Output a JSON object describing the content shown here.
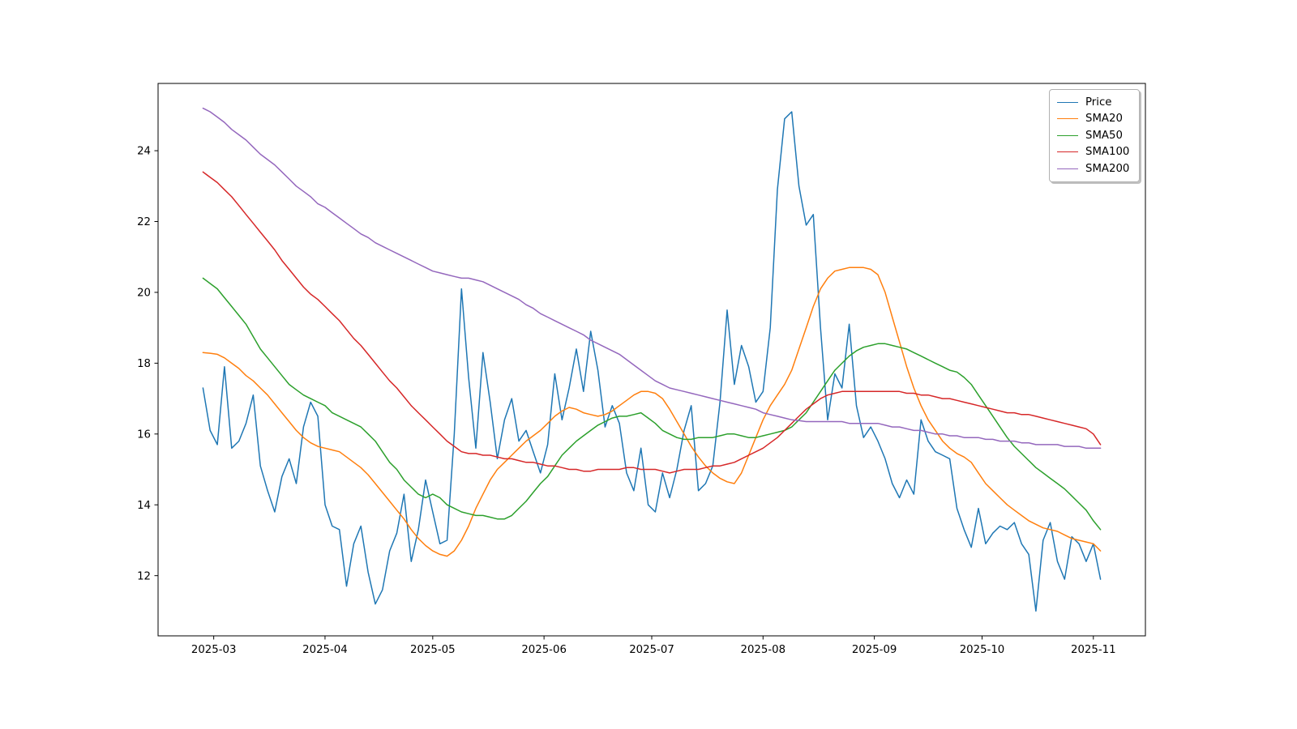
{
  "figure": {
    "background": "#ffffff",
    "plot_background": "#ffffff",
    "spine_color": "#000000",
    "tick_label_color": "#000000"
  },
  "chart_data": {
    "type": "line",
    "title": "",
    "xlabel": "",
    "ylabel": "",
    "grid": false,
    "x_axis": {
      "start_date": "2025-02-26",
      "step_days": 2,
      "ticks": [
        {
          "label": "2025-03",
          "offset": 3
        },
        {
          "label": "2025-04",
          "offset": 34
        },
        {
          "label": "2025-05",
          "offset": 64
        },
        {
          "label": "2025-06",
          "offset": 95
        },
        {
          "label": "2025-07",
          "offset": 125
        },
        {
          "label": "2025-08",
          "offset": 156
        },
        {
          "label": "2025-09",
          "offset": 187
        },
        {
          "label": "2025-10",
          "offset": 217
        },
        {
          "label": "2025-11",
          "offset": 248
        }
      ]
    },
    "y_ticks": [
      12,
      14,
      16,
      18,
      20,
      22,
      24
    ],
    "ylim": [
      10.3,
      25.9
    ],
    "xlim_days": [
      -12.5,
      262.5
    ],
    "legend": {
      "position": "upper right",
      "entries": [
        "Price",
        "SMA20",
        "SMA50",
        "SMA100",
        "SMA200"
      ]
    },
    "series": [
      {
        "name": "Price",
        "color": "#1f77b4",
        "values": [
          17.3,
          16.1,
          15.7,
          17.9,
          15.6,
          15.8,
          16.3,
          17.1,
          15.1,
          14.4,
          13.8,
          14.8,
          15.3,
          14.6,
          16.2,
          16.9,
          16.5,
          14.0,
          13.4,
          13.3,
          11.7,
          12.9,
          13.4,
          12.1,
          11.2,
          11.6,
          12.7,
          13.2,
          14.3,
          12.4,
          13.3,
          14.7,
          13.8,
          12.9,
          13.0,
          16.0,
          20.1,
          17.6,
          15.6,
          18.3,
          16.9,
          15.3,
          16.4,
          17.0,
          15.8,
          16.1,
          15.5,
          14.9,
          15.7,
          17.7,
          16.4,
          17.3,
          18.4,
          17.2,
          18.9,
          17.8,
          16.2,
          16.8,
          16.3,
          14.9,
          14.4,
          15.6,
          14.0,
          13.8,
          14.9,
          14.2,
          15.0,
          16.1,
          16.8,
          14.4,
          14.6,
          15.1,
          16.9,
          19.5,
          17.4,
          18.5,
          17.9,
          16.9,
          17.2,
          19.0,
          22.9,
          24.9,
          25.1,
          23.0,
          21.9,
          22.2,
          19.0,
          16.4,
          17.7,
          17.3,
          19.1,
          16.8,
          15.9,
          16.2,
          15.8,
          15.3,
          14.6,
          14.2,
          14.7,
          14.3,
          16.4,
          15.8,
          15.5,
          15.4,
          15.3,
          13.9,
          13.3,
          12.8,
          13.9,
          12.9,
          13.2,
          13.4,
          13.3,
          13.5,
          12.9,
          12.6,
          11.0,
          13.0,
          13.5,
          12.4,
          11.9,
          13.1,
          12.9,
          12.4,
          12.9,
          11.9
        ]
      },
      {
        "name": "SMA20",
        "color": "#ff7f0e",
        "values": [
          18.3,
          18.28,
          18.25,
          18.15,
          18.0,
          17.85,
          17.65,
          17.5,
          17.3,
          17.1,
          16.85,
          16.6,
          16.35,
          16.1,
          15.9,
          15.75,
          15.65,
          15.6,
          15.55,
          15.5,
          15.35,
          15.2,
          15.05,
          14.85,
          14.6,
          14.35,
          14.1,
          13.85,
          13.6,
          13.3,
          13.05,
          12.85,
          12.7,
          12.6,
          12.55,
          12.7,
          13.0,
          13.4,
          13.9,
          14.3,
          14.7,
          15.0,
          15.2,
          15.4,
          15.6,
          15.8,
          15.95,
          16.1,
          16.3,
          16.5,
          16.65,
          16.75,
          16.7,
          16.6,
          16.55,
          16.5,
          16.55,
          16.65,
          16.8,
          16.95,
          17.1,
          17.2,
          17.2,
          17.15,
          17.0,
          16.7,
          16.35,
          16.0,
          15.65,
          15.35,
          15.1,
          14.9,
          14.75,
          14.65,
          14.6,
          14.9,
          15.4,
          15.9,
          16.4,
          16.8,
          17.1,
          17.4,
          17.8,
          18.4,
          19.0,
          19.6,
          20.1,
          20.4,
          20.6,
          20.65,
          20.7,
          20.7,
          20.7,
          20.65,
          20.5,
          20.0,
          19.3,
          18.6,
          17.9,
          17.3,
          16.8,
          16.4,
          16.1,
          15.8,
          15.6,
          15.45,
          15.35,
          15.2,
          14.9,
          14.6,
          14.4,
          14.2,
          14.0,
          13.85,
          13.7,
          13.55,
          13.45,
          13.35,
          13.3,
          13.25,
          13.15,
          13.05,
          13.0,
          12.95,
          12.9,
          12.7
        ]
      },
      {
        "name": "SMA50",
        "color": "#2ca02c",
        "values": [
          20.4,
          20.25,
          20.1,
          19.85,
          19.6,
          19.35,
          19.1,
          18.75,
          18.4,
          18.15,
          17.9,
          17.65,
          17.4,
          17.25,
          17.1,
          17.0,
          16.9,
          16.8,
          16.6,
          16.5,
          16.4,
          16.3,
          16.2,
          16.0,
          15.8,
          15.5,
          15.2,
          15.0,
          14.7,
          14.5,
          14.3,
          14.2,
          14.3,
          14.2,
          14.0,
          13.9,
          13.8,
          13.75,
          13.7,
          13.7,
          13.65,
          13.6,
          13.6,
          13.7,
          13.9,
          14.1,
          14.35,
          14.6,
          14.8,
          15.1,
          15.4,
          15.6,
          15.8,
          15.95,
          16.1,
          16.25,
          16.35,
          16.45,
          16.5,
          16.5,
          16.55,
          16.6,
          16.45,
          16.3,
          16.1,
          16.0,
          15.9,
          15.85,
          15.85,
          15.9,
          15.9,
          15.9,
          15.95,
          16.0,
          16.0,
          15.95,
          15.9,
          15.9,
          15.95,
          16.0,
          16.05,
          16.1,
          16.2,
          16.4,
          16.6,
          16.9,
          17.2,
          17.5,
          17.8,
          18.0,
          18.2,
          18.35,
          18.45,
          18.5,
          18.55,
          18.55,
          18.5,
          18.45,
          18.4,
          18.3,
          18.2,
          18.1,
          18.0,
          17.9,
          17.8,
          17.75,
          17.6,
          17.4,
          17.1,
          16.8,
          16.5,
          16.2,
          15.9,
          15.65,
          15.45,
          15.25,
          15.05,
          14.9,
          14.75,
          14.6,
          14.45,
          14.25,
          14.05,
          13.85,
          13.55,
          13.3
        ]
      },
      {
        "name": "SMA100",
        "color": "#d62728",
        "values": [
          23.4,
          23.25,
          23.1,
          22.9,
          22.7,
          22.45,
          22.2,
          21.95,
          21.7,
          21.45,
          21.2,
          20.9,
          20.65,
          20.4,
          20.15,
          19.95,
          19.8,
          19.6,
          19.4,
          19.2,
          18.95,
          18.7,
          18.5,
          18.25,
          18.0,
          17.75,
          17.5,
          17.3,
          17.05,
          16.8,
          16.6,
          16.4,
          16.2,
          16.0,
          15.8,
          15.65,
          15.5,
          15.45,
          15.45,
          15.4,
          15.4,
          15.35,
          15.3,
          15.3,
          15.25,
          15.2,
          15.2,
          15.15,
          15.1,
          15.1,
          15.05,
          15.0,
          15.0,
          14.95,
          14.95,
          15.0,
          15.0,
          15.0,
          15.0,
          15.05,
          15.05,
          15.0,
          15.0,
          15.0,
          14.95,
          14.9,
          14.95,
          15.0,
          15.0,
          15.0,
          15.05,
          15.1,
          15.1,
          15.15,
          15.2,
          15.3,
          15.4,
          15.5,
          15.6,
          15.75,
          15.9,
          16.1,
          16.3,
          16.5,
          16.7,
          16.85,
          17.0,
          17.1,
          17.15,
          17.2,
          17.2,
          17.2,
          17.2,
          17.2,
          17.2,
          17.2,
          17.2,
          17.2,
          17.15,
          17.15,
          17.1,
          17.1,
          17.05,
          17.0,
          17.0,
          16.95,
          16.9,
          16.85,
          16.8,
          16.75,
          16.7,
          16.65,
          16.6,
          16.6,
          16.55,
          16.55,
          16.5,
          16.45,
          16.4,
          16.35,
          16.3,
          16.25,
          16.2,
          16.15,
          16.0,
          15.7
        ]
      },
      {
        "name": "SMA200",
        "color": "#9467bd",
        "values": [
          25.2,
          25.1,
          24.95,
          24.8,
          24.6,
          24.45,
          24.3,
          24.1,
          23.9,
          23.75,
          23.6,
          23.4,
          23.2,
          23.0,
          22.85,
          22.7,
          22.5,
          22.4,
          22.25,
          22.1,
          21.95,
          21.8,
          21.65,
          21.55,
          21.4,
          21.3,
          21.2,
          21.1,
          21.0,
          20.9,
          20.8,
          20.7,
          20.6,
          20.55,
          20.5,
          20.45,
          20.4,
          20.4,
          20.35,
          20.3,
          20.2,
          20.1,
          20.0,
          19.9,
          19.8,
          19.65,
          19.55,
          19.4,
          19.3,
          19.2,
          19.1,
          19.0,
          18.9,
          18.8,
          18.65,
          18.55,
          18.45,
          18.35,
          18.25,
          18.1,
          17.95,
          17.8,
          17.65,
          17.5,
          17.4,
          17.3,
          17.25,
          17.2,
          17.15,
          17.1,
          17.05,
          17.0,
          16.95,
          16.9,
          16.85,
          16.8,
          16.75,
          16.7,
          16.6,
          16.55,
          16.5,
          16.45,
          16.4,
          16.38,
          16.35,
          16.35,
          16.35,
          16.35,
          16.35,
          16.35,
          16.3,
          16.3,
          16.3,
          16.3,
          16.3,
          16.25,
          16.2,
          16.2,
          16.15,
          16.1,
          16.1,
          16.05,
          16.0,
          16.0,
          15.95,
          15.95,
          15.9,
          15.9,
          15.9,
          15.85,
          15.85,
          15.8,
          15.8,
          15.8,
          15.75,
          15.75,
          15.7,
          15.7,
          15.7,
          15.7,
          15.65,
          15.65,
          15.65,
          15.6,
          15.6,
          15.6
        ]
      }
    ]
  }
}
